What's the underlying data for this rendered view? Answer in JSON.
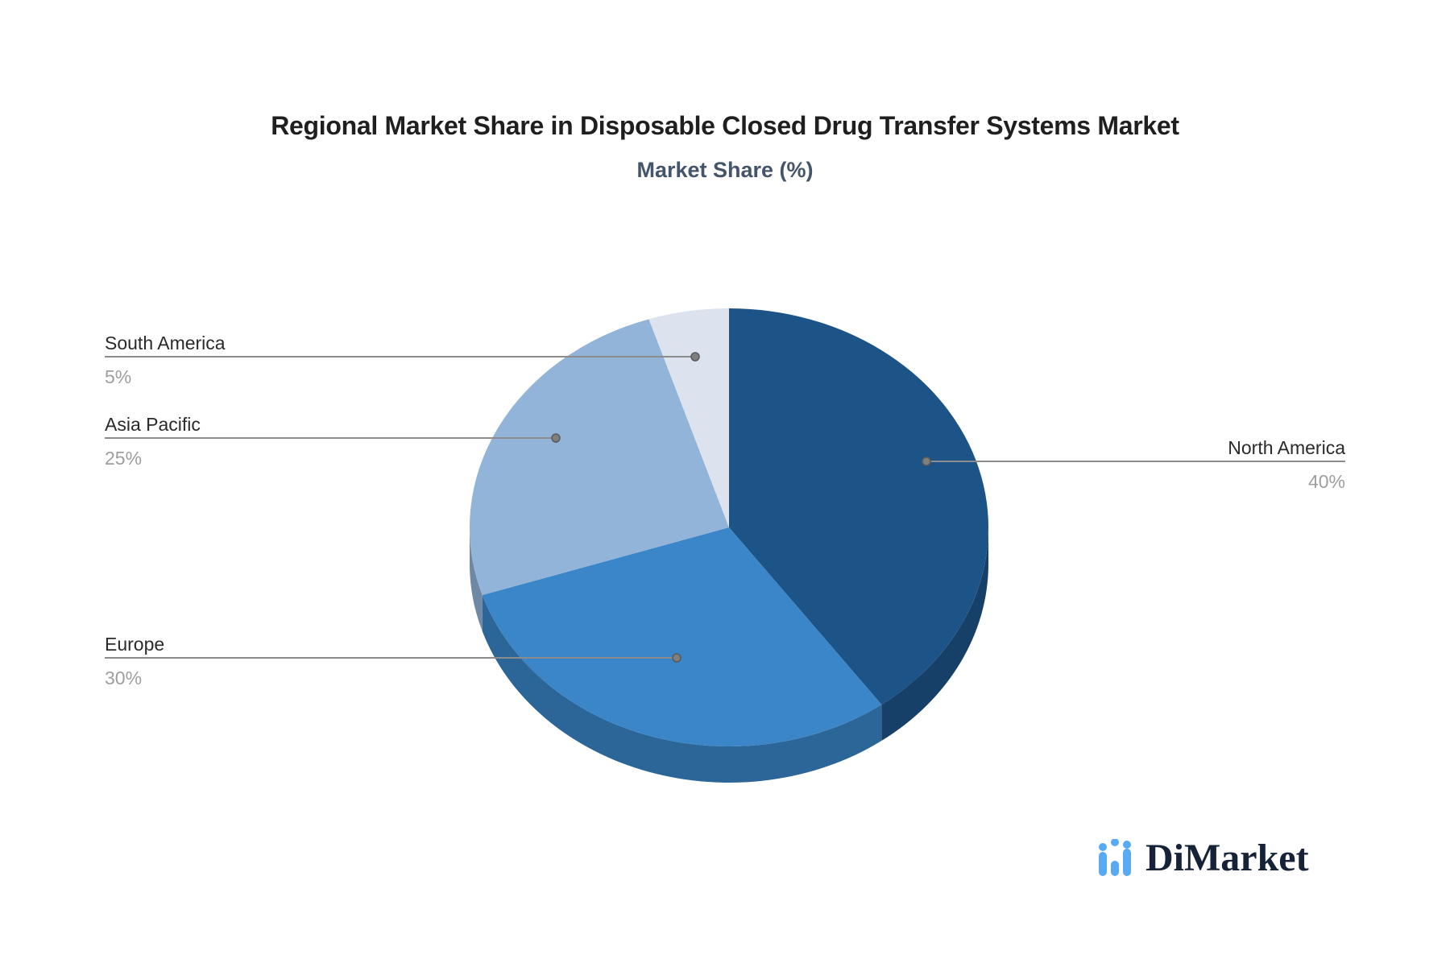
{
  "header": {
    "title": "Regional Market Share in Disposable Closed Drug Transfer Systems Market",
    "subtitle": "Market Share (%)"
  },
  "chart_data": {
    "type": "pie",
    "style": "3d-pie",
    "title": "Regional Market Share in Disposable Closed Drug Transfer Systems Market",
    "subtitle": "Market Share (%)",
    "unit": "%",
    "labels": [
      "North America",
      "Europe",
      "Asia Pacific",
      "South America"
    ],
    "values": [
      40,
      30,
      25,
      5
    ],
    "pct_labels": [
      "40%",
      "30%",
      "25%",
      "5%"
    ],
    "colors": [
      "#1d5487",
      "#3a86c8",
      "#92b4d9",
      "#dce3ef"
    ],
    "start_angle_deg": 0,
    "direction": "clockwise",
    "legend_position": "callout-labels",
    "leader_line_color": "#8c8c8c",
    "label_text_color": "#2a2a2a",
    "pct_text_color": "#9e9e9e"
  },
  "logo": {
    "text": "DiMarket",
    "icon": "bar-chart-logo-icon",
    "bar_color": "#58aaf4",
    "text_color": "#152238"
  }
}
